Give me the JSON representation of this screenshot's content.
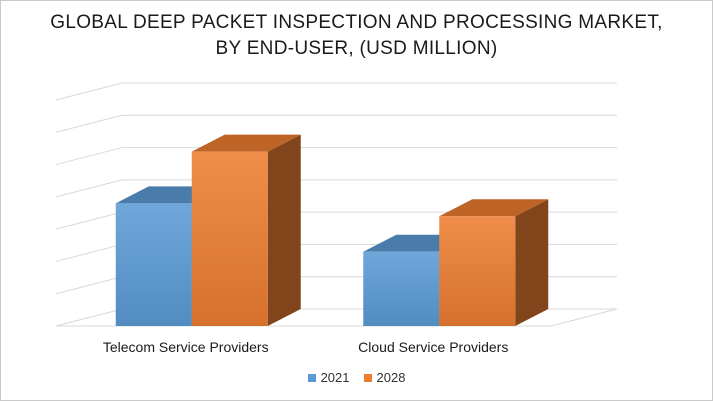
{
  "chart_data": {
    "type": "bar",
    "title_lines": [
      "GLOBAL DEEP PACKET INSPECTION AND PROCESSING MARKET,",
      "BY END-USER, (USD MILLION)"
    ],
    "categories": [
      "Telecom Service Providers",
      "Cloud Service Providers"
    ],
    "series": [
      {
        "name": "2021",
        "values": [
          3.8,
          2.3
        ],
        "color": "#5b9bd5"
      },
      {
        "name": "2028",
        "values": [
          5.4,
          3.4
        ],
        "color": "#ed7d31"
      }
    ],
    "ylim": [
      0,
      7
    ],
    "grid": true,
    "legend_position": "bottom",
    "style": "3d-clustered-column"
  }
}
